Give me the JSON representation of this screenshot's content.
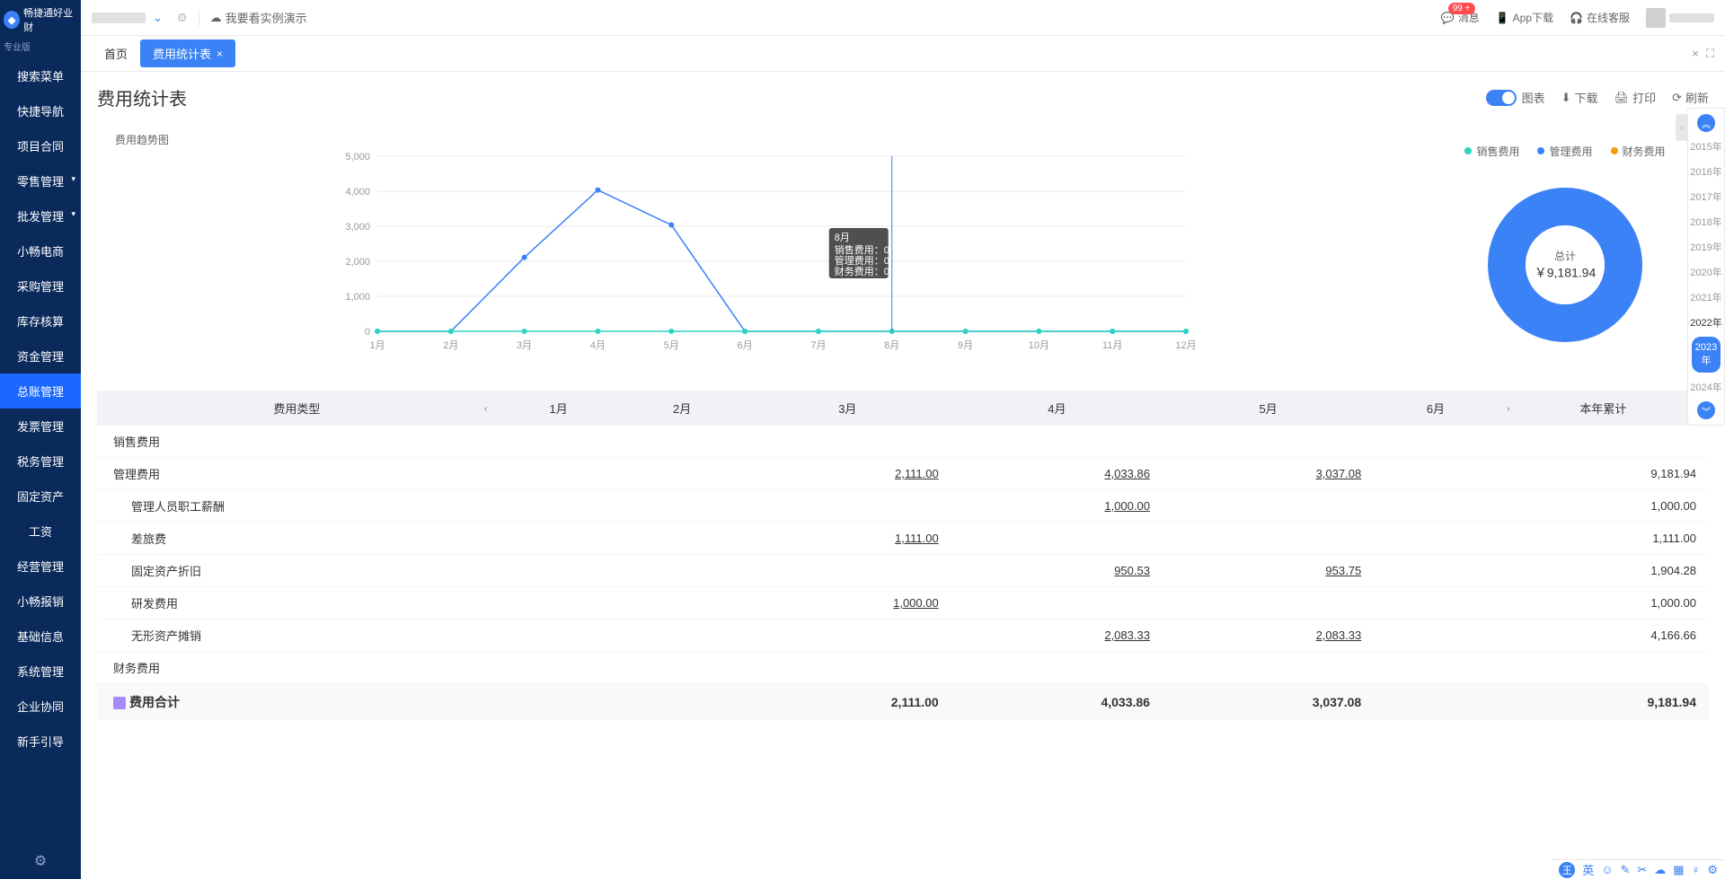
{
  "brand": {
    "name": "畅捷通好业财",
    "edition": "专业版"
  },
  "sidebar": {
    "items": [
      {
        "label": "搜索菜单"
      },
      {
        "label": "快捷导航"
      },
      {
        "label": "项目合同"
      },
      {
        "label": "零售管理",
        "expandable": true
      },
      {
        "label": "批发管理",
        "expandable": true
      },
      {
        "label": "小畅电商"
      },
      {
        "label": "采购管理"
      },
      {
        "label": "库存核算"
      },
      {
        "label": "资金管理"
      },
      {
        "label": "总账管理",
        "active": true
      },
      {
        "label": "发票管理"
      },
      {
        "label": "税务管理"
      },
      {
        "label": "固定资产"
      },
      {
        "label": "工资"
      },
      {
        "label": "经营管理"
      },
      {
        "label": "小畅报销"
      },
      {
        "label": "基础信息"
      },
      {
        "label": "系统管理"
      },
      {
        "label": "企业协同"
      },
      {
        "label": "新手引导"
      }
    ]
  },
  "topbar": {
    "demo": "我要看实例演示",
    "messages": "消息",
    "badge": "99 +",
    "download": "App下载",
    "support": "在线客服"
  },
  "tabs": {
    "home": "首页",
    "current": "费用统计表"
  },
  "page": {
    "title": "费用统计表",
    "chart_toggle": "图表",
    "download": "下载",
    "print": "打印",
    "refresh": "刷新"
  },
  "chart": {
    "title": "费用趋势图",
    "legend": [
      {
        "label": "销售费用",
        "color": "#2dd4bf"
      },
      {
        "label": "管理费用",
        "color": "#3b82f6"
      },
      {
        "label": "财务费用",
        "color": "#f59e0b"
      }
    ],
    "y_ticks": [
      "0",
      "1,000",
      "2,000",
      "3,000",
      "4,000",
      "5,000"
    ],
    "x_labels": [
      "1月",
      "2月",
      "3月",
      "4月",
      "5月",
      "6月",
      "7月",
      "8月",
      "9月",
      "10月",
      "11月",
      "12月"
    ],
    "management_values": [
      0,
      0,
      2111,
      4033.86,
      3037.08,
      0,
      0,
      0,
      0,
      0,
      0,
      0
    ],
    "y_max": 5000,
    "tooltip": {
      "month": "8月",
      "lines": [
        "销售费用：0",
        "管理费用：0",
        "财务费用：0"
      ]
    },
    "donut": {
      "label": "总计",
      "value": "￥9,181.94",
      "color": "#3b82f6"
    }
  },
  "table": {
    "headers": [
      "费用类型",
      "1月",
      "2月",
      "3月",
      "4月",
      "5月",
      "6月",
      "本年累计"
    ],
    "rows": [
      {
        "type": "category",
        "cells": [
          "销售费用",
          "",
          "",
          "",
          "",
          "",
          "",
          ""
        ]
      },
      {
        "type": "category",
        "cells": [
          "管理费用",
          "",
          "",
          "2,111.00",
          "4,033.86",
          "3,037.08",
          "",
          "9,181.94"
        ],
        "links": [
          3,
          4,
          5
        ]
      },
      {
        "type": "sub",
        "cells": [
          "管理人员职工薪酬",
          "",
          "",
          "",
          "1,000.00",
          "",
          "",
          "1,000.00"
        ],
        "links": [
          4
        ]
      },
      {
        "type": "sub",
        "cells": [
          "差旅费",
          "",
          "",
          "1,111.00",
          "",
          "",
          "",
          "1,111.00"
        ],
        "links": [
          3
        ]
      },
      {
        "type": "sub",
        "cells": [
          "固定资产折旧",
          "",
          "",
          "",
          "950.53",
          "953.75",
          "",
          "1,904.28"
        ],
        "links": [
          4,
          5
        ]
      },
      {
        "type": "sub",
        "cells": [
          "研发费用",
          "",
          "",
          "1,000.00",
          "",
          "",
          "",
          "1,000.00"
        ],
        "links": [
          3
        ]
      },
      {
        "type": "sub",
        "cells": [
          "无形资产摊销",
          "",
          "",
          "",
          "2,083.33",
          "2,083.33",
          "",
          "4,166.66"
        ],
        "links": [
          4,
          5
        ]
      },
      {
        "type": "category",
        "cells": [
          "财务费用",
          "",
          "",
          "",
          "",
          "",
          "",
          ""
        ]
      }
    ],
    "footer": [
      "费用合计",
      "",
      "",
      "2,111.00",
      "4,033.86",
      "3,037.08",
      "",
      "9,181.94"
    ]
  },
  "years": {
    "list": [
      "2015年",
      "2016年",
      "2017年",
      "2018年",
      "2019年",
      "2020年",
      "2021年",
      "2022年",
      "2023年",
      "2024年"
    ],
    "bold": "2022年",
    "active": "2023年"
  },
  "taskbar": {
    "ime_badge": "王",
    "ime_lang": "英"
  }
}
